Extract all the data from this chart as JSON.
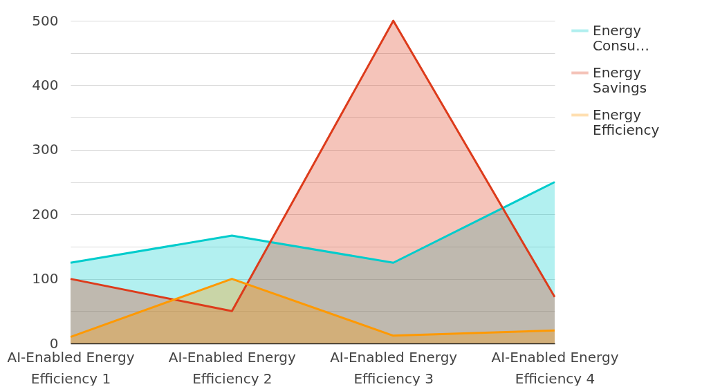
{
  "chart_data": {
    "type": "area",
    "categories": [
      "AI-Enabled Energy Efficiency 1",
      "AI-Enabled Energy Efficiency 2",
      "AI-Enabled Energy Efficiency 3",
      "AI-Enabled Energy Efficiency 4"
    ],
    "series": [
      {
        "name": "Energy Consu…",
        "color": "#00cccc",
        "values": [
          125,
          167,
          125,
          250
        ]
      },
      {
        "name": "Energy Savings",
        "color": "#dd3b1b",
        "values": [
          100,
          50,
          500,
          72
        ]
      },
      {
        "name": "Energy Efficiency",
        "color": "#ff9900",
        "values": [
          10,
          100,
          12,
          20
        ]
      }
    ],
    "ylim": [
      0,
      500
    ],
    "yticks": [
      0,
      {
        "value": 50,
        "label": null
      },
      100,
      {
        "value": 150,
        "label": null
      },
      200,
      {
        "value": 250,
        "label": null
      },
      300,
      {
        "value": 350,
        "label": null
      },
      400,
      {
        "value": 450,
        "label": null
      },
      500
    ],
    "grid": "y",
    "legend": "top right"
  }
}
